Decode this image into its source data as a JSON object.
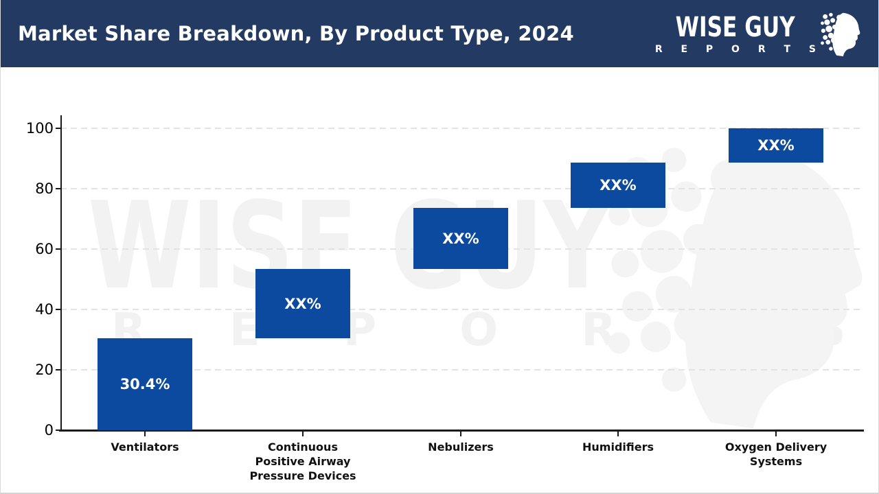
{
  "header": {
    "title": "Market Share Breakdown, By Product Type, 2024",
    "bg_color": "#233a63",
    "logo": {
      "line1": "WISE GUY",
      "line2": "R E P O R T S"
    }
  },
  "watermark": {
    "line1": "WISE GUY",
    "line2": "R E P O R T S"
  },
  "chart_data": {
    "type": "bar",
    "variant": "waterfall-range-bars",
    "title": "Market Share Breakdown, By Product Type, 2024",
    "categories": [
      "Ventilators",
      "Continuous Positive Airway Pressure Devices",
      "Nebulizers",
      "Humidifiers",
      "Oxygen Delivery Systems"
    ],
    "category_lines": [
      [
        "Ventilators"
      ],
      [
        "Continuous",
        "Positive Airway",
        "Pressure Devices"
      ],
      [
        "Nebulizers"
      ],
      [
        "Humidifiers"
      ],
      [
        "Oxygen Delivery",
        "Systems"
      ]
    ],
    "segments": [
      {
        "category": "Ventilators",
        "start": 0,
        "end": 30.4,
        "label": "30.4%"
      },
      {
        "category": "Continuous Positive Airway Pressure Devices",
        "start": 30.4,
        "end": 53.3,
        "label": "XX%"
      },
      {
        "category": "Nebulizers",
        "start": 53.3,
        "end": 73.6,
        "label": "XX%"
      },
      {
        "category": "Humidifiers",
        "start": 73.6,
        "end": 88.6,
        "label": "XX%"
      },
      {
        "category": "Oxygen Delivery Systems",
        "start": 88.6,
        "end": 100,
        "label": "XX%"
      }
    ],
    "ylim": [
      0,
      100
    ],
    "yticks": [
      0,
      20,
      40,
      60,
      80,
      100
    ],
    "grid": "horizontal-dashed",
    "legend": "none",
    "bar_color": "#0c4a9f",
    "bar_label_color": "#ffffff"
  }
}
